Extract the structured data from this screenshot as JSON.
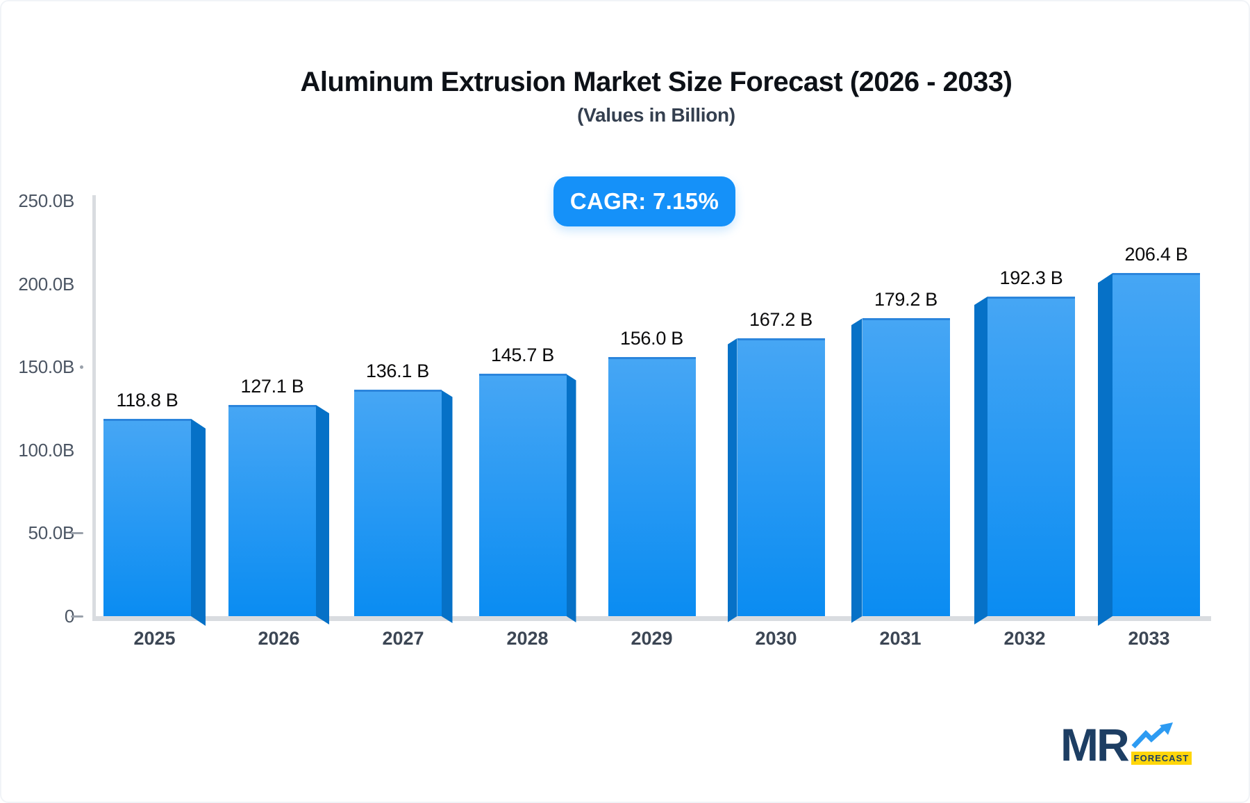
{
  "chart_data": {
    "type": "bar",
    "title": "Aluminum Extrusion Market Size Forecast (2026 - 2033)",
    "subtitle": "(Values in Billion)",
    "cagr_label": "CAGR: 7.15%",
    "categories": [
      "2025",
      "2026",
      "2027",
      "2028",
      "2029",
      "2030",
      "2031",
      "2032",
      "2033"
    ],
    "values": [
      118.8,
      127.1,
      136.1,
      145.7,
      156.0,
      167.2,
      179.2,
      192.3,
      206.4
    ],
    "value_labels": [
      "118.8 B",
      "127.1 B",
      "136.1 B",
      "145.7 B",
      "156.0 B",
      "167.2 B",
      "179.2 B",
      "192.3 B",
      "206.4 B"
    ],
    "ylim": [
      0,
      250
    ],
    "yticks": [
      {
        "value": 0,
        "label": "0",
        "mark": "dash"
      },
      {
        "value": 50,
        "label": "50.0B",
        "mark": "dash"
      },
      {
        "value": 100,
        "label": "100.0B",
        "mark": "none"
      },
      {
        "value": 150,
        "label": "150.0B",
        "mark": "dot"
      },
      {
        "value": 200,
        "label": "200.0B",
        "mark": "none"
      },
      {
        "value": 250,
        "label": "250.0B",
        "mark": "none"
      }
    ],
    "grid": false,
    "legend": false,
    "bar_style": "3d-perspective-center-vanishing",
    "colors": {
      "bar_face_top": "#46a6f4",
      "bar_face_bottom": "#0a8cf2",
      "bar_top_border": "#2b85dc",
      "bar_side": "#0671c7",
      "axis_line": "#d9dce0",
      "tick_mark": "#9aa1ab",
      "badge_bg": "#1591f9",
      "badge_text": "#ffffff"
    }
  },
  "logo": {
    "text": "MR",
    "tagline": "FORECAST",
    "colors": {
      "navy": "#1d3e63",
      "arrow_blue": "#2d9bf2",
      "yellow": "#ffd60a"
    }
  }
}
